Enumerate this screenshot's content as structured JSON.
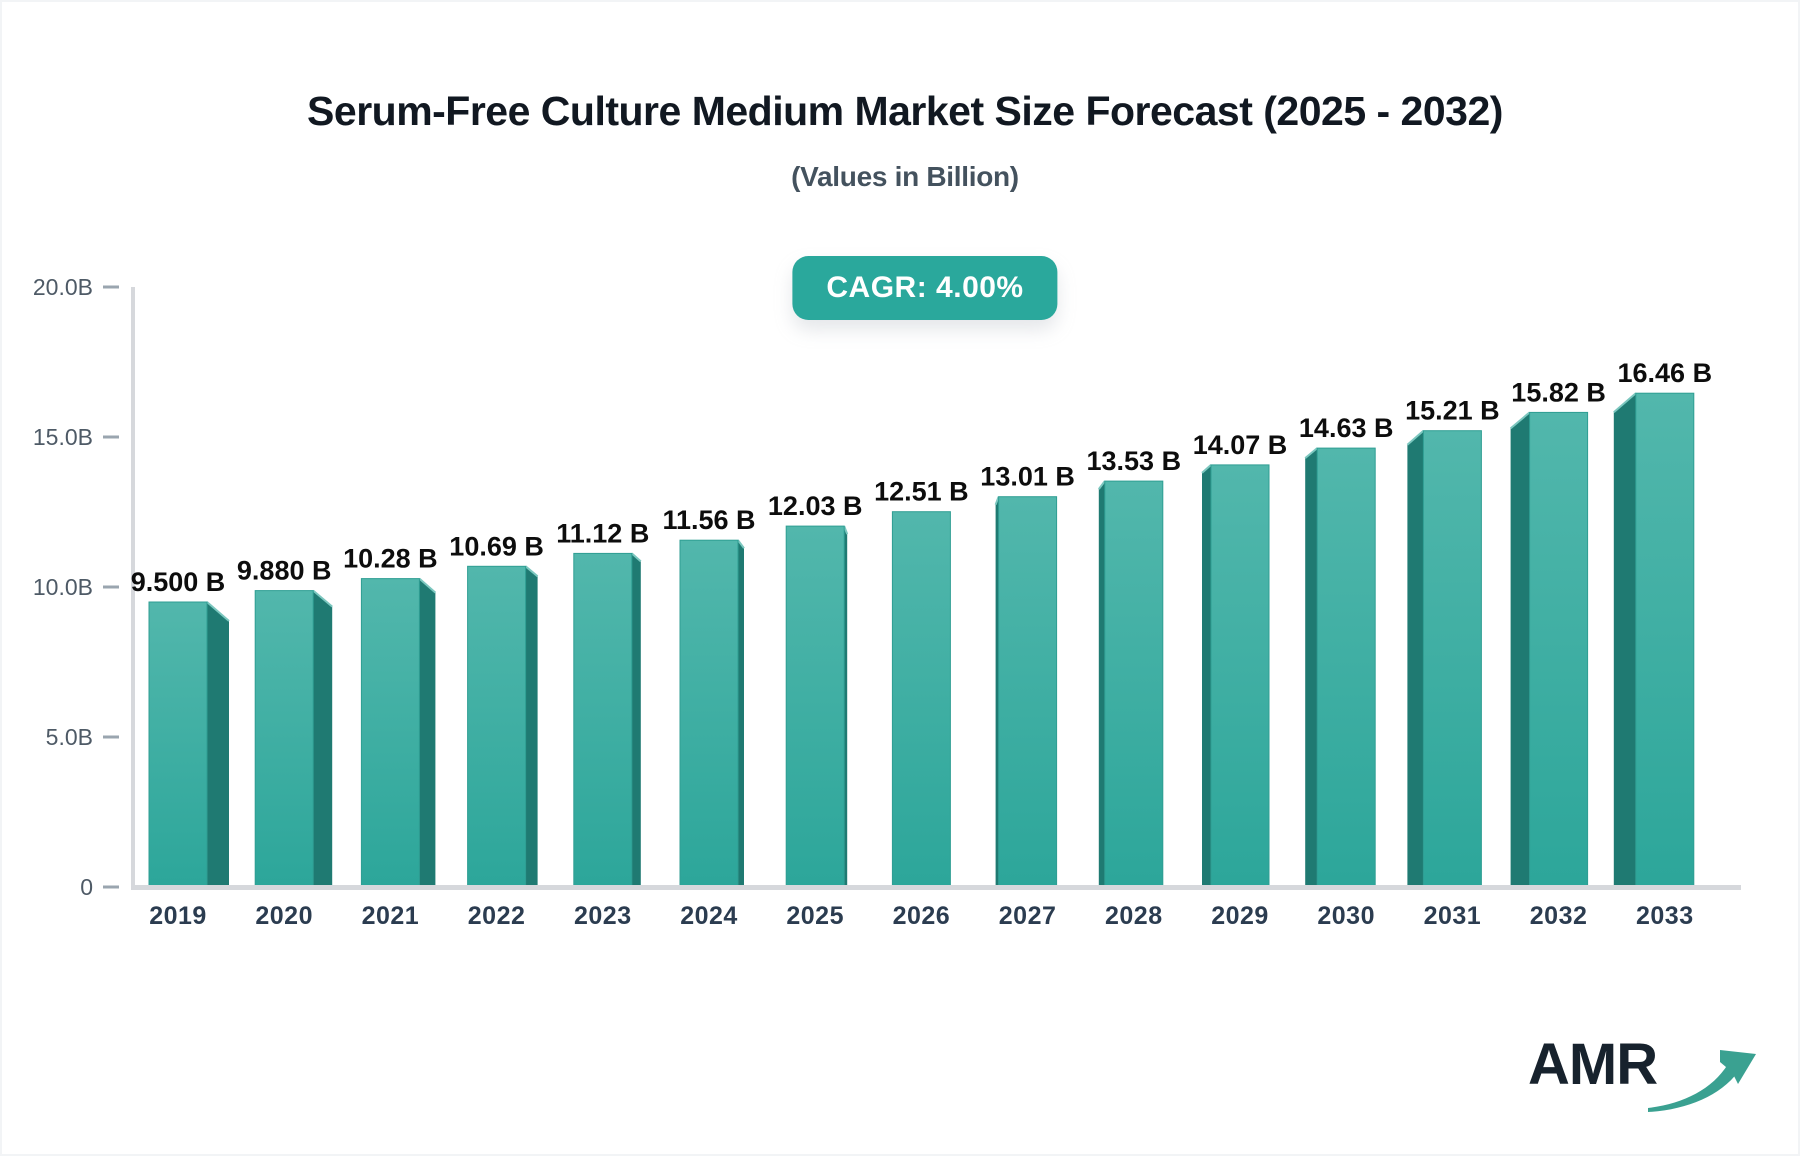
{
  "header": {
    "title": "Serum-Free Culture Medium Market Size Forecast (2025 - 2032)",
    "subtitle": "(Values in Billion)"
  },
  "badge": {
    "label": "CAGR: 4.00%",
    "bg_color": "#2aa89c",
    "text_color": "#ffffff"
  },
  "chart_data": {
    "type": "bar",
    "title": "Serum-Free Culture Medium Market Size Forecast (2025 - 2032)",
    "subtitle": "(Values in Billion)",
    "xlabel": "",
    "ylabel": "",
    "ylim": [
      0,
      20
    ],
    "grid": false,
    "legend": "none",
    "categories": [
      "2019",
      "2020",
      "2021",
      "2022",
      "2023",
      "2024",
      "2025",
      "2026",
      "2027",
      "2028",
      "2029",
      "2030",
      "2031",
      "2032",
      "2033"
    ],
    "values": [
      9.5,
      9.88,
      10.28,
      10.69,
      11.12,
      11.56,
      12.03,
      12.51,
      13.01,
      13.53,
      14.07,
      14.63,
      15.21,
      15.82,
      16.46
    ],
    "value_labels": [
      "9.500 B",
      "9.880 B",
      "10.28 B",
      "10.69 B",
      "11.12 B",
      "11.56 B",
      "12.03 B",
      "12.51 B",
      "13.01 B",
      "13.53 B",
      "14.07 B",
      "14.63 B",
      "15.21 B",
      "15.82 B",
      "16.46 B"
    ],
    "y_ticks": [
      {
        "value": 0,
        "label": "0"
      },
      {
        "value": 5,
        "label": "5.0B"
      },
      {
        "value": 10,
        "label": "10.0B"
      },
      {
        "value": 15,
        "label": "15.0B"
      },
      {
        "value": 20,
        "label": "20.0B"
      }
    ],
    "colors": {
      "bar_face_top": "#52b7ac",
      "bar_face_bottom": "#2ca69a",
      "bar_face_stroke": "#2f9e93",
      "bar_side": "#1f7a72",
      "bar_bevel": "#7cc7bf",
      "axis_line": "#d6d8dc",
      "tick_dash": "#9aa5af",
      "tick_label": "#4e5a66",
      "year_label": "#2b3c50",
      "value_label": "#0d0d0d"
    }
  },
  "logo": {
    "text": "AMR",
    "arrow_color": "#3aa191",
    "text_color": "#17222d"
  }
}
